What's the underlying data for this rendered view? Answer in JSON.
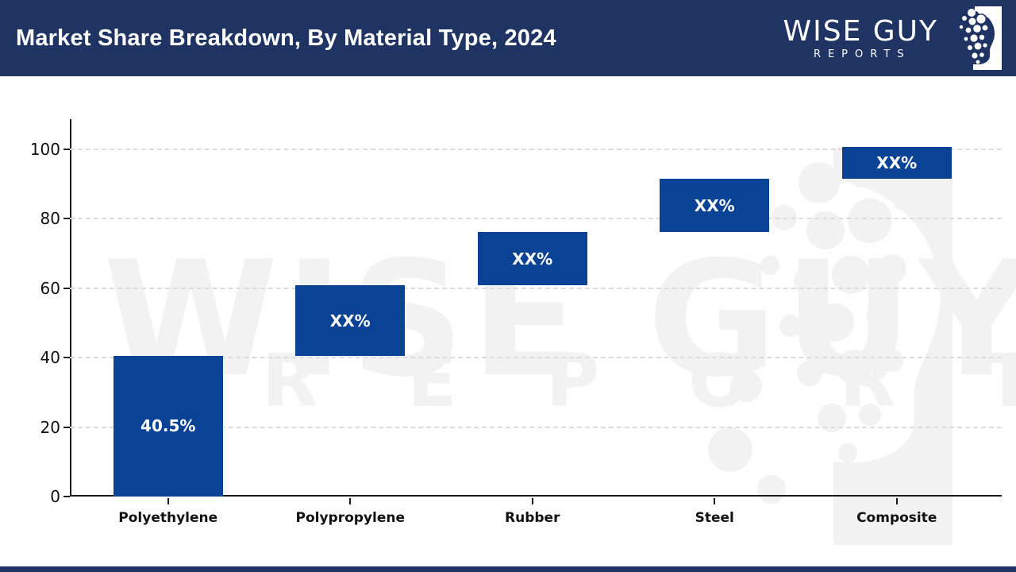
{
  "header": {
    "title": "Market Share Breakdown, By Material Type, 2024",
    "bg_color": "#1f3463",
    "logo": {
      "line1": "WISE GUY",
      "line2": "REPORTS",
      "face_icon": "dotted-head-profile"
    }
  },
  "watermark": {
    "line1": "WISE GUY",
    "line2": "REPORTS",
    "color": "#f2f2f2"
  },
  "chart_data": {
    "type": "bar",
    "subtype": "waterfall",
    "title": "",
    "xlabel": "",
    "ylabel": "",
    "categories": [
      "Polyethylene",
      "Polypropylene",
      "Rubber",
      "Steel",
      "Composite"
    ],
    "segments": [
      {
        "category": "Polyethylene",
        "start": 0,
        "end": 40.5,
        "label": "40.5%"
      },
      {
        "category": "Polypropylene",
        "start": 40.5,
        "end": 60.8,
        "label": "XX%"
      },
      {
        "category": "Rubber",
        "start": 60.8,
        "end": 76.2,
        "label": "XX%"
      },
      {
        "category": "Steel",
        "start": 76.2,
        "end": 91.5,
        "label": "XX%"
      },
      {
        "category": "Composite",
        "start": 91.5,
        "end": 100.7,
        "label": "XX%"
      }
    ],
    "yticks": [
      0,
      20,
      40,
      60,
      80,
      100
    ],
    "ylim": [
      0,
      108.7
    ],
    "grid": "horizontal-dashed",
    "legend": "none",
    "bar_color": "#0a4396",
    "bar_label_color": "#ffffff",
    "gridline_color": "#dcdcdc",
    "axis_color": "#1a1a1a"
  }
}
